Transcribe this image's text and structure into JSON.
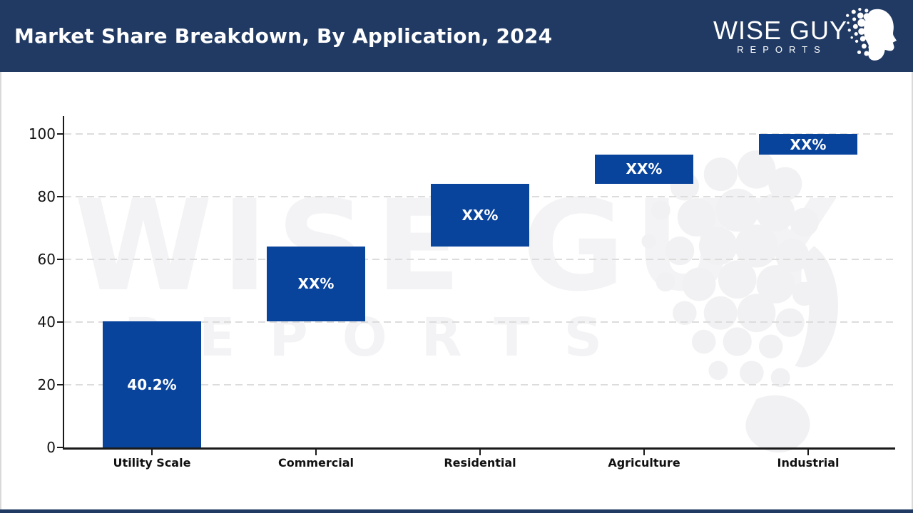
{
  "header": {
    "title": "Market Share Breakdown, By Application, 2024",
    "bg_color": "#213a63",
    "logo": {
      "name": "WISE GUY",
      "sub": "REPORTS"
    }
  },
  "watermark": {
    "line1": "WISE GUY",
    "line2": "REPORTS"
  },
  "chart_data": {
    "type": "bar",
    "variant": "waterfall",
    "title": "Market Share Breakdown, By Application, 2024",
    "categories": [
      "Utility Scale",
      "Commercial",
      "Residential",
      "Agriculture",
      "Industrial"
    ],
    "series": [
      {
        "name": "Market Share (%)",
        "segments": [
          {
            "category": "Utility Scale",
            "start": 0,
            "end": 40.2,
            "label": "40.2%"
          },
          {
            "category": "Commercial",
            "start": 40.2,
            "end": 64.2,
            "label": "XX%"
          },
          {
            "category": "Residential",
            "start": 64.2,
            "end": 84.2,
            "label": "XX%"
          },
          {
            "category": "Agriculture",
            "start": 84.2,
            "end": 93.4,
            "label": "XX%"
          },
          {
            "category": "Industrial",
            "start": 93.4,
            "end": 100,
            "label": "XX%"
          }
        ]
      }
    ],
    "ylim": [
      0,
      100
    ],
    "yticks": [
      0,
      20,
      40,
      60,
      80,
      100
    ],
    "xlabel": "",
    "ylabel": "",
    "bar_color": "#08439c",
    "label_color": "#ffffff",
    "grid": "horizontal-dashed",
    "legend": "none"
  }
}
